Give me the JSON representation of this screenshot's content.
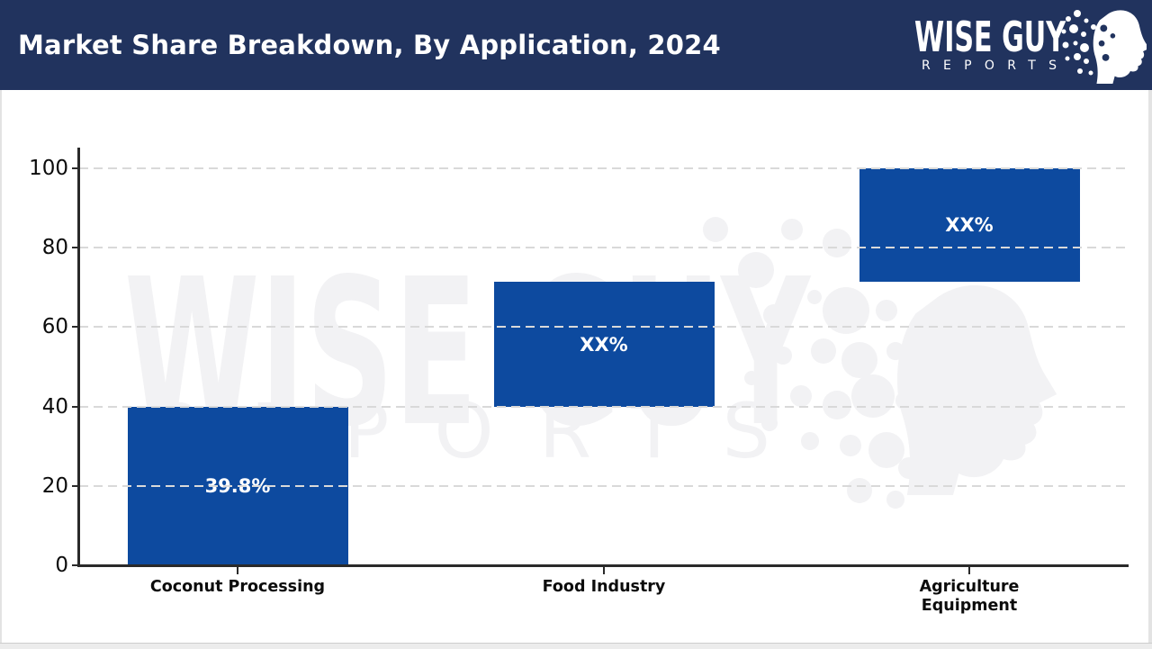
{
  "header": {
    "title": "Market Share Breakdown, By Application, 2024",
    "logo": {
      "line1": "WISE GUY",
      "line2": "REPORTS"
    }
  },
  "watermark": {
    "line1": "WISE GUY",
    "line2": "REPORTS"
  },
  "chart_data": {
    "type": "bar",
    "subtype": "waterfall",
    "title": "Market Share Breakdown, By Application, 2024",
    "categories": [
      "Coconut Processing",
      "Food Industry",
      "Agriculture Equipment"
    ],
    "bars": [
      {
        "category": "Coconut Processing",
        "display": "Coconut Processing",
        "start": 0,
        "end": 39.8,
        "value_label": "39.8%"
      },
      {
        "category": "Food Industry",
        "display": "Food Industry",
        "start": 39.8,
        "end": 71.5,
        "value_label": "XX%"
      },
      {
        "category": "Agriculture Equipment",
        "display": "Agriculture\nEquipment",
        "start": 71.5,
        "end": 100,
        "value_label": "XX%"
      }
    ],
    "yticks": [
      0,
      20,
      40,
      60,
      80,
      100
    ],
    "ylim": [
      0,
      105
    ],
    "grid": {
      "axis": "y",
      "style": "dashed"
    },
    "legend": "none",
    "colors": {
      "bar": "#0d4a9f",
      "value_label": "#ffffff",
      "header_bg": "#21335e",
      "gridline": "#d9d9d9",
      "axis": "#2a2a2a",
      "watermark": "#f2f2f4"
    }
  }
}
